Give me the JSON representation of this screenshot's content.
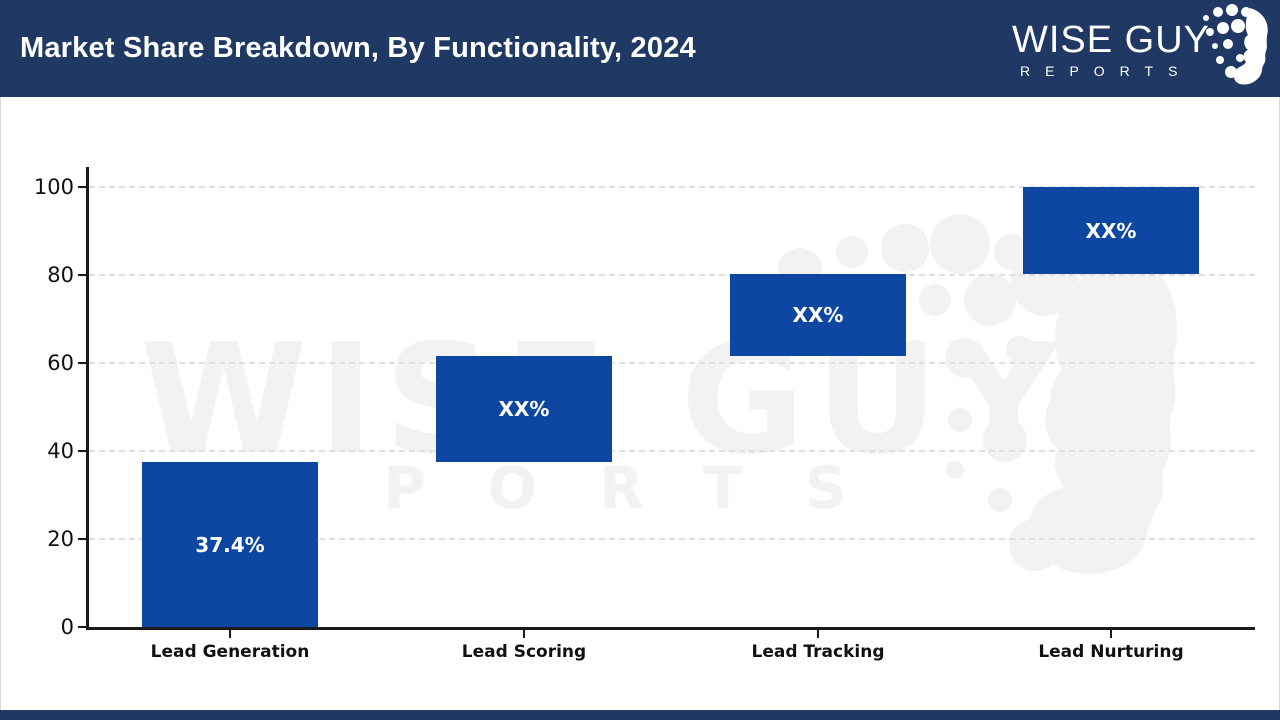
{
  "header": {
    "title": "Market Share Breakdown, By Functionality, 2024",
    "bg_color": "#1f3864",
    "logo": {
      "line1": "WISE GUY",
      "line2": "REPORTS"
    }
  },
  "watermark": {
    "line1": "WISE GUY",
    "line2": "REPORTS"
  },
  "chart_data": {
    "type": "bar",
    "subtype": "waterfall",
    "title": "Market Share Breakdown, By Functionality, 2024",
    "categories": [
      "Lead Generation",
      "Lead Scoring",
      "Lead Tracking",
      "Lead Nurturing"
    ],
    "segments": [
      {
        "category": "Lead Generation",
        "start": 0,
        "end": 37.4,
        "label": "37.4%"
      },
      {
        "category": "Lead Scoring",
        "start": 37.4,
        "end": 61.7,
        "label": "XX%"
      },
      {
        "category": "Lead Tracking",
        "start": 61.7,
        "end": 80.2,
        "label": "XX%"
      },
      {
        "category": "Lead Nurturing",
        "start": 80.2,
        "end": 100,
        "label": "XX%"
      }
    ],
    "xlabel": "",
    "ylabel": "",
    "yticks": [
      0,
      20,
      40,
      60,
      80,
      100
    ],
    "ylim": [
      0,
      104
    ],
    "grid": "horizontal-dashed",
    "legend": "none",
    "bar_color": "#0d47a1",
    "bar_label_color": "#ffffff",
    "axis_color": "#1a1a1a",
    "gridline_color": "#e0e0e0"
  },
  "colors": {
    "header_navy": "#1f3864",
    "bar_blue": "#0d47a1",
    "watermark_gray": "#f2f2f2"
  }
}
